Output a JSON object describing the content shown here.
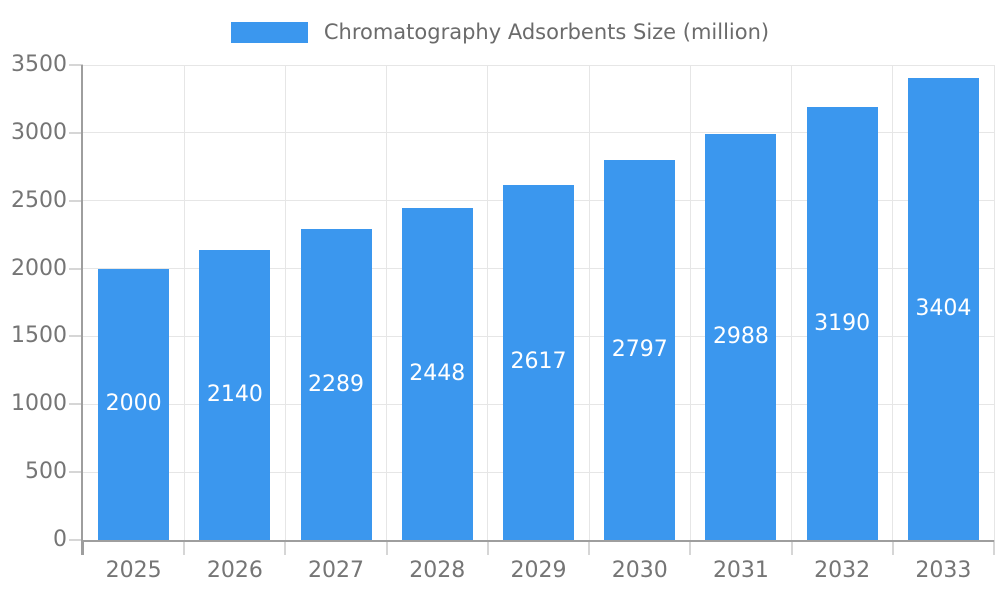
{
  "legend": {
    "label": "Chromatography Adsorbents Size (million)"
  },
  "chart_data": {
    "type": "bar",
    "title": "Chromatography Adsorbents Size (million)",
    "categories": [
      "2025",
      "2026",
      "2027",
      "2028",
      "2029",
      "2030",
      "2031",
      "2032",
      "2033"
    ],
    "values": [
      2000,
      2140,
      2289,
      2448,
      2617,
      2797,
      2988,
      3190,
      3404
    ],
    "xlabel": "",
    "ylabel": "",
    "ylim": [
      0,
      3500
    ],
    "ytick_step": 500,
    "yticks": [
      0,
      500,
      1000,
      1500,
      2000,
      2500,
      3000,
      3500
    ],
    "grid": true,
    "legend_position": "top",
    "bar_labels_inside": true,
    "colors": {
      "bar": "#3b97ee",
      "bar_label": "#ffffff",
      "axis_line": "#9e9e9e",
      "grid_line": "#e6e6e6",
      "tick_line": "#d6d6d6",
      "axis_text": "#757575",
      "legend_text": "#6b6b6b",
      "background": "#ffffff"
    }
  }
}
